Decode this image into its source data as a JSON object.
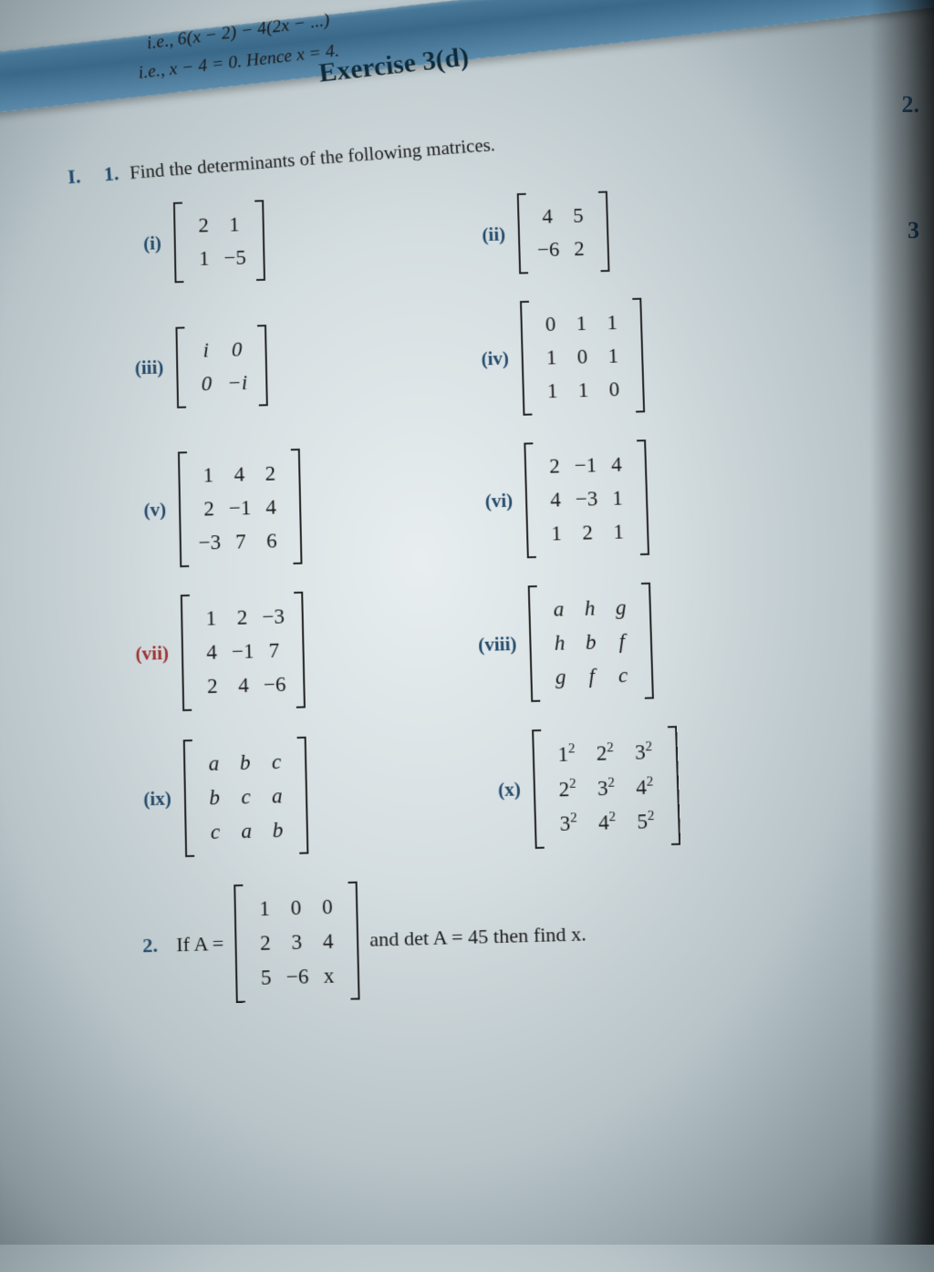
{
  "page": {
    "bg_gradient_colors": [
      "#e8eef0",
      "#d4dde0",
      "#b8c4c8",
      "#8a989e",
      "#5a686e",
      "#2a3438"
    ],
    "accent_color": "#234a6a",
    "accent_red": "#a03030",
    "font_family": "Times New Roman",
    "body_fontsize_pt": 16
  },
  "preamble": {
    "line1": "i.e.,  6(x − 2) − 4(2x − ...)",
    "line2": "i.e.,  x − 4 = 0.  Hence x = 4."
  },
  "exercise_banner": {
    "title": "Exercise 3(d)",
    "title_fontsize_pt": 22,
    "band_colors": [
      "#4a7a9a",
      "#3a6888",
      "#5b8aaa"
    ]
  },
  "section": {
    "roman": "I.",
    "q1_num": "1.",
    "q1_text": "Find the determinants of the following matrices."
  },
  "matrices": {
    "i": {
      "rows": [
        [
          "2",
          "1"
        ],
        [
          "1",
          "−5"
        ]
      ]
    },
    "ii": {
      "rows": [
        [
          "4",
          "5"
        ],
        [
          "−6",
          "2"
        ]
      ]
    },
    "iii": {
      "rows": [
        [
          "i",
          "0"
        ],
        [
          "0",
          "−i"
        ]
      ],
      "italic": true
    },
    "iv": {
      "rows": [
        [
          "0",
          "1",
          "1"
        ],
        [
          "1",
          "0",
          "1"
        ],
        [
          "1",
          "1",
          "0"
        ]
      ]
    },
    "v": {
      "rows": [
        [
          "1",
          "4",
          "2"
        ],
        [
          "2",
          "−1",
          "4"
        ],
        [
          "−3",
          "7",
          "6"
        ]
      ]
    },
    "vi": {
      "rows": [
        [
          "2",
          "−1",
          "4"
        ],
        [
          "4",
          "−3",
          "1"
        ],
        [
          "1",
          "2",
          "1"
        ]
      ]
    },
    "vii": {
      "rows": [
        [
          "1",
          "2",
          "−3"
        ],
        [
          "4",
          "−1",
          "7"
        ],
        [
          "2",
          "4",
          "−6"
        ]
      ]
    },
    "viii": {
      "rows": [
        [
          "a",
          "h",
          "g"
        ],
        [
          "h",
          "b",
          "f"
        ],
        [
          "g",
          "f",
          "c"
        ]
      ],
      "italic": true
    },
    "ix": {
      "rows": [
        [
          "a",
          "b",
          "c"
        ],
        [
          "b",
          "c",
          "a"
        ],
        [
          "c",
          "a",
          "b"
        ]
      ],
      "italic": true
    },
    "x": {
      "rows": [
        [
          "1²",
          "2²",
          "3²"
        ],
        [
          "2²",
          "3²",
          "4²"
        ],
        [
          "3²",
          "4²",
          "5²"
        ]
      ],
      "wide": true
    }
  },
  "labels": {
    "i": "(i)",
    "ii": "(ii)",
    "iii": "(iii)",
    "iv": "(iv)",
    "v": "(v)",
    "vi": "(vi)",
    "vii": "(vii)",
    "viii": "(viii)",
    "ix": "(ix)",
    "x": "(x)"
  },
  "label_colors": {
    "i": "blue",
    "ii": "blue",
    "iii": "blue",
    "iv": "blue",
    "v": "blue",
    "vi": "blue",
    "vii": "red",
    "viii": "blue",
    "ix": "blue",
    "x": "blue"
  },
  "q2": {
    "num": "2.",
    "before": "If  A =",
    "matrix": {
      "rows": [
        [
          "1",
          "0",
          "0"
        ],
        [
          "2",
          "3",
          "4"
        ],
        [
          "5",
          "−6",
          "x"
        ]
      ]
    },
    "after": "and  det A = 45 then find  x."
  },
  "margin": {
    "n2": "2.",
    "n3": "3"
  }
}
